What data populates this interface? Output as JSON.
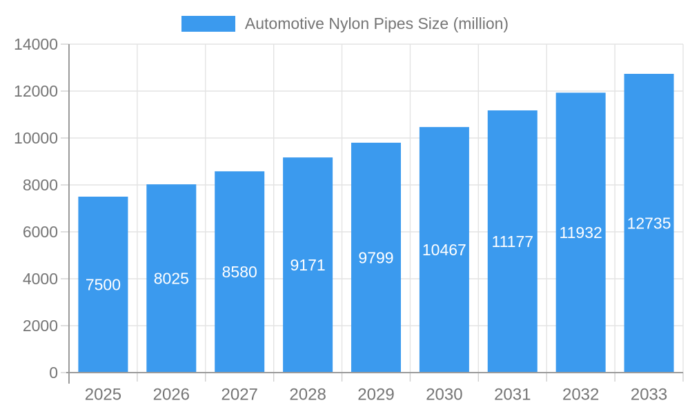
{
  "chart_data": {
    "type": "bar",
    "title": "Automotive Nylon Pipes Size (million)",
    "legend_entries": [
      "Automotive Nylon Pipes Size (million)"
    ],
    "legend_position": "top",
    "categories": [
      "2025",
      "2026",
      "2027",
      "2028",
      "2029",
      "2030",
      "2031",
      "2032",
      "2033"
    ],
    "series": [
      {
        "name": "Automotive Nylon Pipes Size (million)",
        "values": [
          7500,
          8025,
          8580,
          9171,
          9799,
          10467,
          11177,
          11932,
          12735
        ]
      }
    ],
    "bar_value_labels": [
      "7500",
      "8025",
      "8580",
      "9171",
      "9799",
      "10467",
      "11177",
      "11932",
      "12735"
    ],
    "xlabel": "",
    "ylabel": "",
    "ylim": [
      0,
      14000
    ],
    "ytick_interval": 2000,
    "yticks": [
      0,
      2000,
      4000,
      6000,
      8000,
      10000,
      12000,
      14000
    ],
    "grid": true,
    "colors": {
      "bar": "#3B9AEE",
      "bar_label_text": "#FFFFFF",
      "axis_text": "#757575",
      "grid_line": "#E3E3E3",
      "axis_line": "#9A9A9A",
      "tick_line": "#CFCFCF",
      "background": "#FFFFFF"
    }
  }
}
